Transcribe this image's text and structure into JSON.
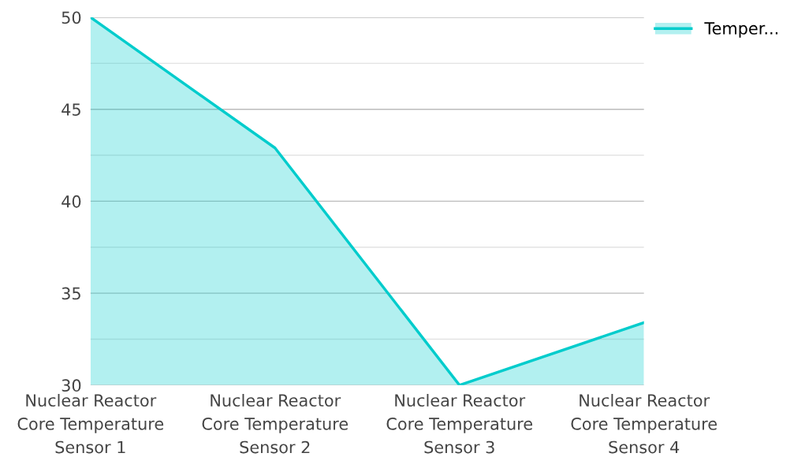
{
  "chart_data": {
    "type": "area",
    "categories": [
      "Nuclear Reactor\nCore Temperature\nSensor 1",
      "Nuclear Reactor\nCore Temperature\nSensor 2",
      "Nuclear Reactor\nCore Temperature\nSensor 3",
      "Nuclear Reactor\nCore Temperature\nSensor 4"
    ],
    "series": [
      {
        "name": "Temper...",
        "color": "#00cccc",
        "values": [
          50,
          42.9,
          30,
          33.4
        ]
      }
    ],
    "ylim": [
      30,
      50
    ],
    "yticks": [
      30,
      {
        "value": 32.5,
        "label": null
      },
      35,
      {
        "value": 37.5,
        "label": null
      },
      40,
      {
        "value": 42.5,
        "label": null
      },
      45,
      {
        "value": 47.5,
        "label": null
      },
      50
    ],
    "grid": "y",
    "legend": "top right"
  }
}
